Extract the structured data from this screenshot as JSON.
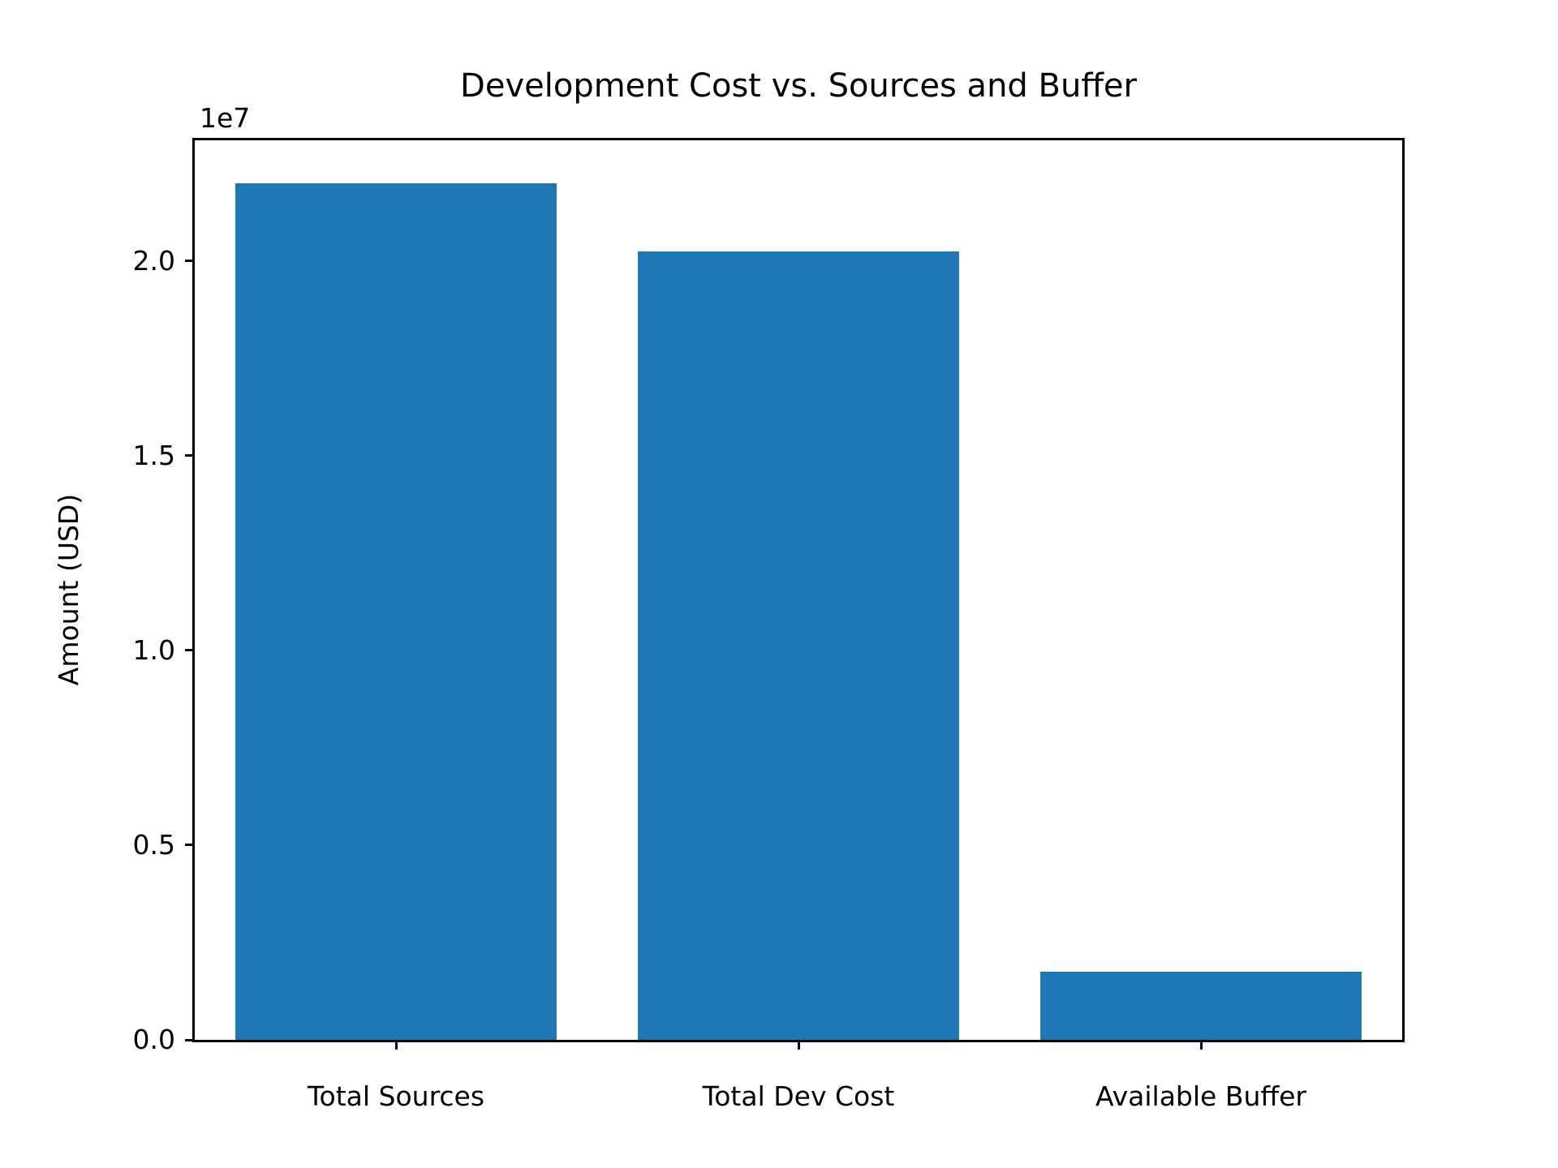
{
  "chart_data": {
    "type": "bar",
    "title": "Development Cost vs. Sources and Buffer",
    "xlabel": "",
    "ylabel": "Amount (USD)",
    "offset_text": "1e7",
    "categories": [
      "Total Sources",
      "Total Dev Cost",
      "Available Buffer"
    ],
    "values": [
      22000000,
      20250000,
      1750000
    ],
    "bar_color": "#1f77b4",
    "axis_color": "#000000",
    "background_color": "#ffffff",
    "ylim": [
      0,
      23100000
    ],
    "ytick_values": [
      0,
      5000000,
      10000000,
      15000000,
      20000000
    ],
    "ytick_labels": [
      "0.0",
      "0.5",
      "1.0",
      "1.5",
      "2.0"
    ],
    "bar_width_fraction": 0.8,
    "grid": false,
    "legend": null
  }
}
